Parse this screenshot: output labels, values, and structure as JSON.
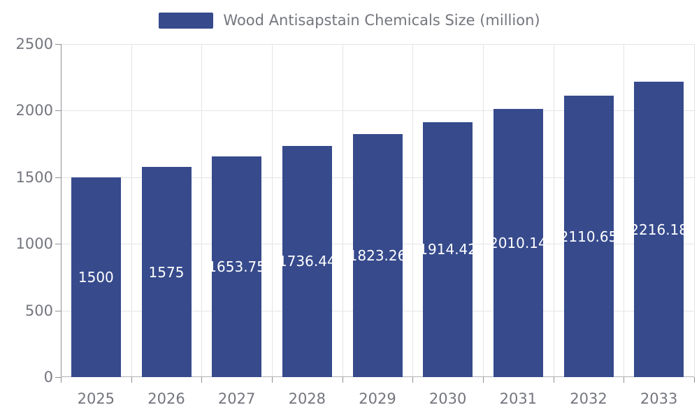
{
  "legend": {
    "label": "Wood Antisapstain Chemicals Size (million)"
  },
  "chart_data": {
    "type": "bar",
    "title": "Wood Antisapstain Chemicals Size (million)",
    "categories": [
      "2025",
      "2026",
      "2027",
      "2028",
      "2029",
      "2030",
      "2031",
      "2032",
      "2033"
    ],
    "series": [
      {
        "name": "Wood Antisapstain Chemicals Size (million)",
        "values": [
          1500,
          1575,
          1653.75,
          1736.44,
          1823.26,
          1914.42,
          2010.14,
          2110.65,
          2216.18
        ]
      }
    ],
    "value_labels": [
      "1500",
      "1575",
      "1653.75",
      "1736.44",
      "1823.26",
      "1914.42",
      "2010.14",
      "2110.65",
      "2216.18"
    ],
    "xlabel": "",
    "ylabel": "",
    "ylim": [
      0,
      2500
    ],
    "yticks": [
      0,
      500,
      1000,
      1500,
      2000,
      2500
    ],
    "grid": true,
    "legend_position": "top-center",
    "bar_color": "#364a8c",
    "bar_label_color": "#ffffff",
    "axis_text_color": "#74767e"
  }
}
